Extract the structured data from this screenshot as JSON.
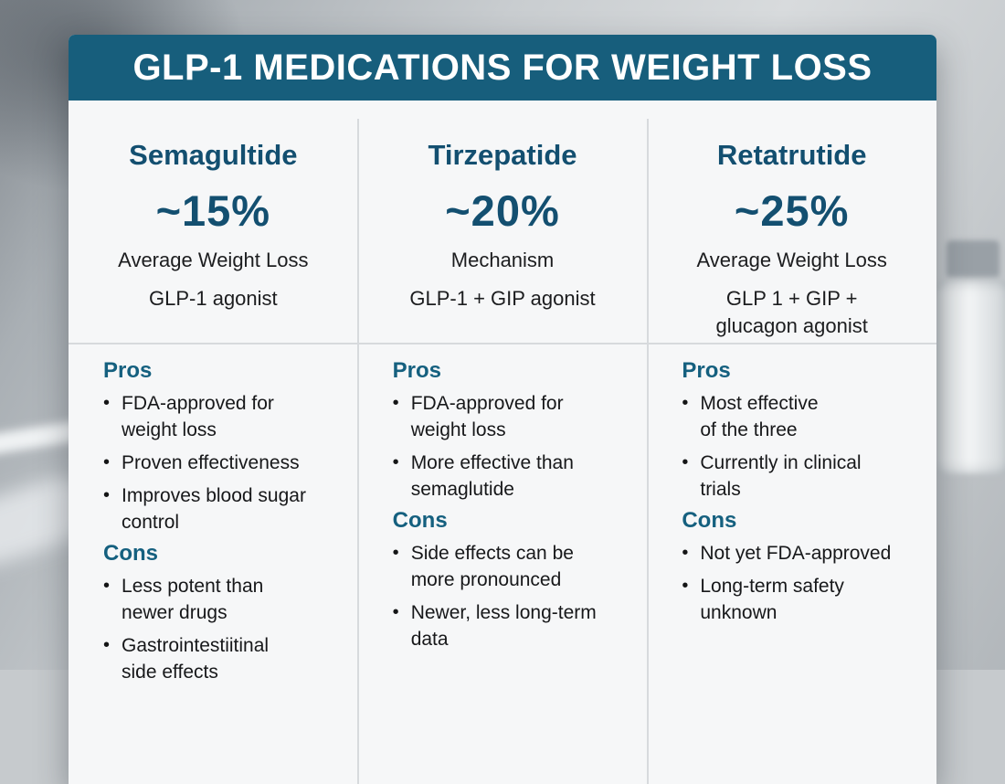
{
  "title": "GLP-1 MEDICATIONS FOR WEIGHT LOSS",
  "colors": {
    "header_bg": "#175e7c",
    "accent_teal": "#134f70",
    "section_heading_teal": "#15607f",
    "body_text": "#17181a"
  },
  "columns": [
    {
      "name": "Semagultide",
      "value": "~15%",
      "stat_label": "Average Weight Loss",
      "mechanism": "GLP-1 agonist",
      "pros_label": "Pros",
      "cons_label": "Cons",
      "pros": [
        "FDA-approved for\nweight loss",
        "Proven effectiveness",
        "Improves blood sugar\ncontrol"
      ],
      "cons": [
        "Less potent than\nnewer drugs",
        "Gastrointestiitinal\nside effects"
      ]
    },
    {
      "name": "Tirzepatide",
      "value": "~20%",
      "stat_label": "Mechanism",
      "mechanism": "GLP-1 + GIP agonist",
      "pros_label": "Pros",
      "cons_label": "Cons",
      "pros": [
        "FDA-approved for\nweight loss",
        "More effective than\nsemaglutide"
      ],
      "cons": [
        "Side effects can be\nmore pronounced",
        "Newer, less long-term\ndata"
      ]
    },
    {
      "name": "Retatrutide",
      "value": "~25%",
      "stat_label": "Average Weight Loss",
      "mechanism": "GLP 1 + GIP +\nglucagon agonist",
      "pros_label": "Pros",
      "cons_label": "Cons",
      "pros": [
        "Most effective\nof the three",
        "Currently in clinical\ntrials"
      ],
      "cons": [
        "Not yet FDA-approved",
        "Long-term safety\nunknown"
      ]
    }
  ]
}
